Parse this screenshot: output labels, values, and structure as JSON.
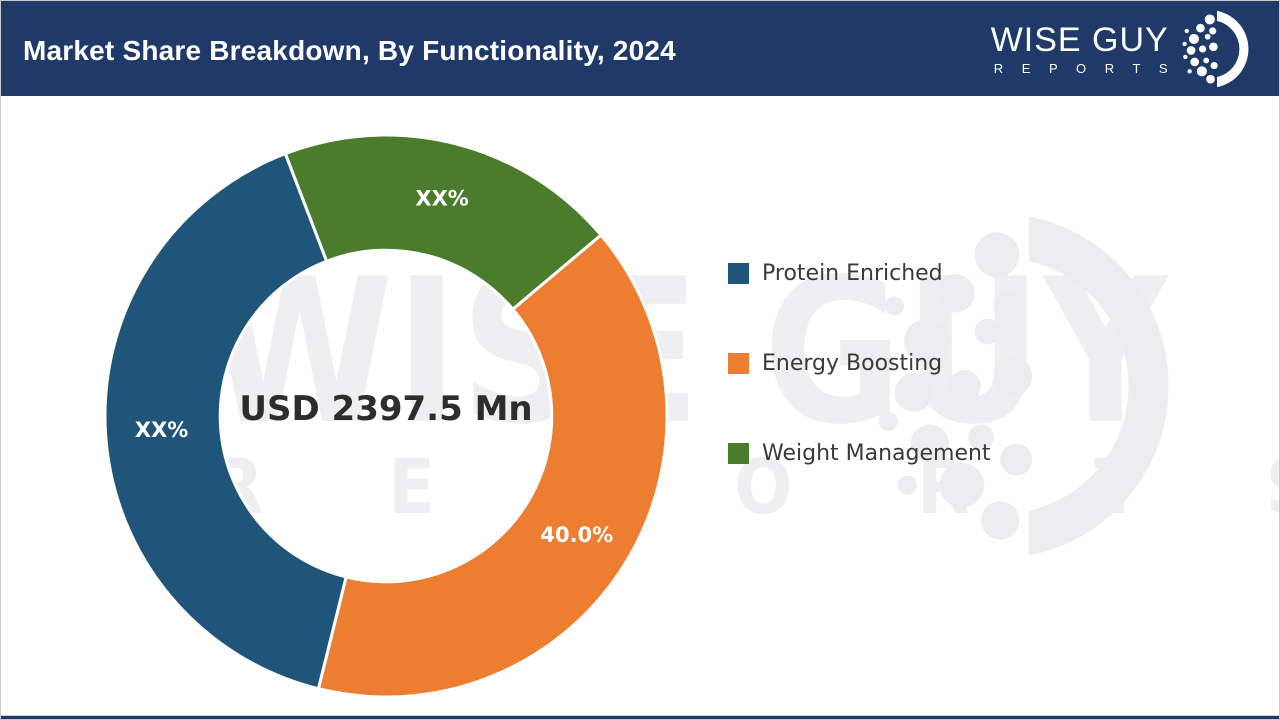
{
  "header": {
    "title": "Market Share Breakdown, By Functionality, 2024",
    "bg_color": "#1f3a68",
    "logo": {
      "line1": "WISE GUY",
      "line2": "R E P O R T S"
    }
  },
  "watermark": {
    "line1": "WISE GUY",
    "line2": "R E P O R T S"
  },
  "chart_data": {
    "type": "pie",
    "subtype": "donut",
    "title": "Market Share Breakdown, By Functionality, 2024",
    "center_label": "USD 2397.5 Mn",
    "start_angle_deg": -21,
    "inner_radius_frac": 0.59,
    "label_radius_frac": 0.8,
    "legend_position": "right",
    "segments": [
      {
        "name": "Weight Management",
        "display_label": "XX%",
        "percent": 19.7,
        "color": "#4a7c2c",
        "label_color": "#ffffff"
      },
      {
        "name": "Energy Boosting",
        "display_label": "40.0%",
        "percent": 40.0,
        "color": "#ed7d31",
        "label_color": "#ffffff"
      },
      {
        "name": "Protein Enriched",
        "display_label": "XX%",
        "percent": 40.3,
        "color": "#1f5578",
        "label_color": "#ffffff"
      }
    ]
  },
  "legend": {
    "items": [
      {
        "label": "Protein Enriched",
        "color": "#1f5578"
      },
      {
        "label": "Energy Boosting",
        "color": "#ed7d31"
      },
      {
        "label": "Weight Management",
        "color": "#4a7c2c"
      }
    ]
  }
}
